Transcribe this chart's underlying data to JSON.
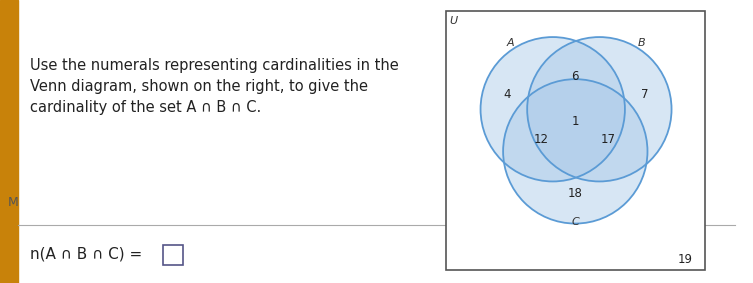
{
  "title_text": "Use the numerals representing cardinalities in the\nVenn diagram, shown on the right, to give the\ncardinality of the set A ∩ B ∩ C.",
  "answer_label": "n(A ∩ B ∩ C) =",
  "bg_color": "#e8e8e8",
  "side_bar_color": "#c8820a",
  "divider_color": "#aaaaaa",
  "text_color": "#222222",
  "venn": {
    "U_label": "U",
    "A_label": "A",
    "B_label": "B",
    "C_label": "C",
    "circle_color": "#5b9bd5",
    "light_fill": "#a8c8e8",
    "medium_fill": "#5b9bd5",
    "numbers": {
      "A_only": "4",
      "B_only": "7",
      "AB_only": "6",
      "AC_only": "12",
      "BC_only": "17",
      "ABC": "1",
      "C_only": "18",
      "outside": "19"
    }
  }
}
